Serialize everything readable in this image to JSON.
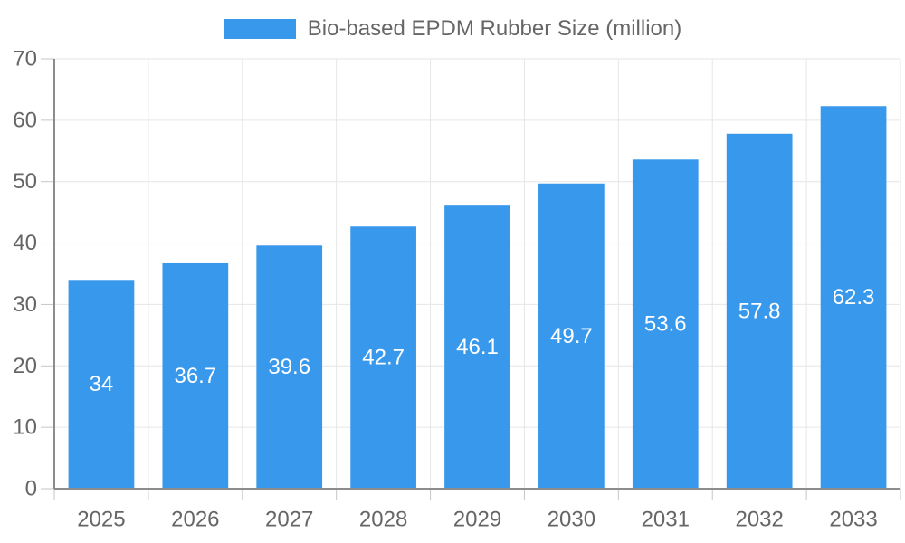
{
  "chart_data": {
    "type": "bar",
    "title": "Bio-based EPDM Rubber Size (million)",
    "legend_label": "Bio-based EPDM Rubber Size (million)",
    "legend_position": "top",
    "categories": [
      "2025",
      "2026",
      "2027",
      "2028",
      "2029",
      "2030",
      "2031",
      "2032",
      "2033"
    ],
    "values": [
      34,
      36.7,
      39.6,
      42.7,
      46.1,
      49.7,
      53.6,
      57.8,
      62.3
    ],
    "xlabel": "",
    "ylabel": "",
    "ylim": [
      0,
      70
    ],
    "yticks": [
      0,
      10,
      20,
      30,
      40,
      50,
      60,
      70
    ],
    "grid": true,
    "bar_color": "#3898ec",
    "value_label_color": "#ffffff",
    "tick_label_color": "#666666",
    "axis_line_color": "#8c8c8c",
    "tick_mark_color": "#c6c6c6",
    "gridline_color": "#e6e6e6",
    "background_color": "#ffffff"
  }
}
